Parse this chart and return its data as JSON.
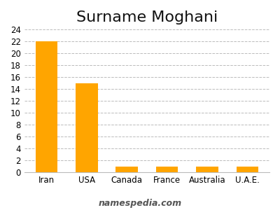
{
  "title": "Surname Moghani",
  "categories": [
    "Iran",
    "USA",
    "Canada",
    "France",
    "Australia",
    "U.A.E."
  ],
  "values": [
    22,
    15,
    1,
    1,
    1,
    1
  ],
  "bar_color": "#FFA500",
  "background_color": "#ffffff",
  "ylim": [
    0,
    24
  ],
  "yticks": [
    0,
    2,
    4,
    6,
    8,
    10,
    12,
    14,
    16,
    18,
    20,
    22,
    24
  ],
  "grid_color": "#bbbbbb",
  "title_fontsize": 16,
  "tick_fontsize": 8.5,
  "watermark": "namespedia.com",
  "watermark_fontsize": 9,
  "bar_width": 0.55
}
